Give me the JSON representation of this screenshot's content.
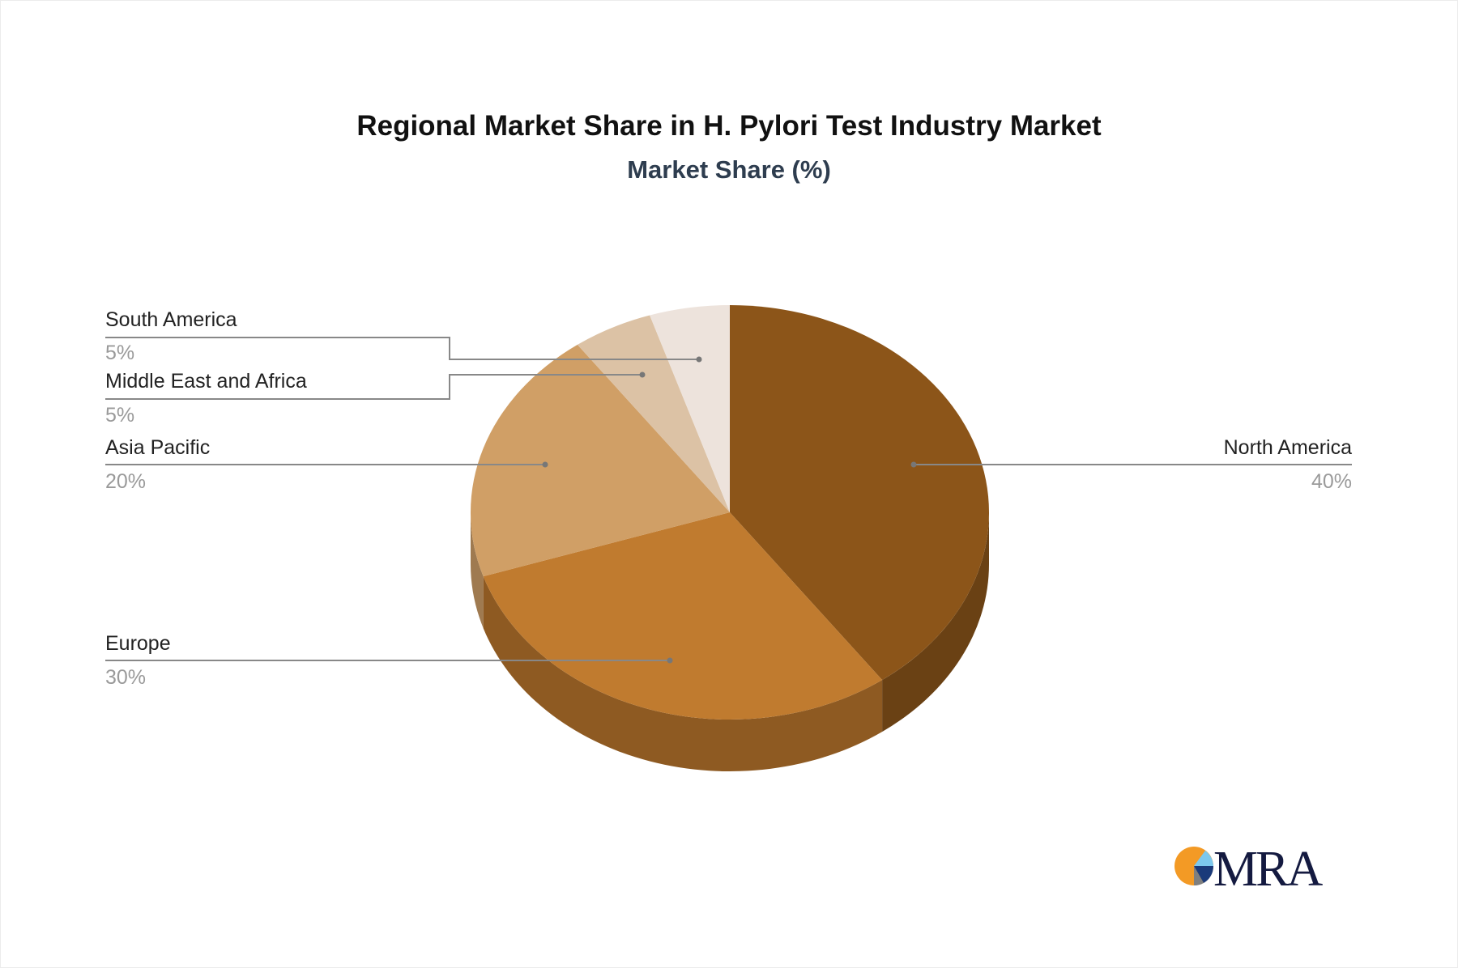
{
  "chart_data": {
    "type": "pie",
    "title": "Regional Market Share in H. Pylori Test Industry Market",
    "subtitle": "Market Share (%)",
    "style": "3d",
    "slices": [
      {
        "label": "North America",
        "value": 40,
        "value_label": "40%",
        "color": "#8C5519",
        "side_color": "#6A4114"
      },
      {
        "label": "Europe",
        "value": 30,
        "value_label": "30%",
        "color": "#C07B2F",
        "side_color": "#8E5A22"
      },
      {
        "label": "Asia Pacific",
        "value": 20,
        "value_label": "20%",
        "color": "#D09F66",
        "side_color": "#9F7A50"
      },
      {
        "label": "Middle East and Africa",
        "value": 5,
        "value_label": "5%",
        "color": "#DCC2A5",
        "side_color": "#B09A80"
      },
      {
        "label": "South America",
        "value": 5,
        "value_label": "5%",
        "color": "#EDE3DC",
        "side_color": "#C4B8AF"
      }
    ]
  },
  "logo": {
    "text": "MRA",
    "colors": {
      "orange": "#F39A25",
      "light_blue": "#7CC8EE",
      "navy": "#1A3A7A",
      "gray": "#7F7F7F",
      "text": "#141A40"
    }
  }
}
